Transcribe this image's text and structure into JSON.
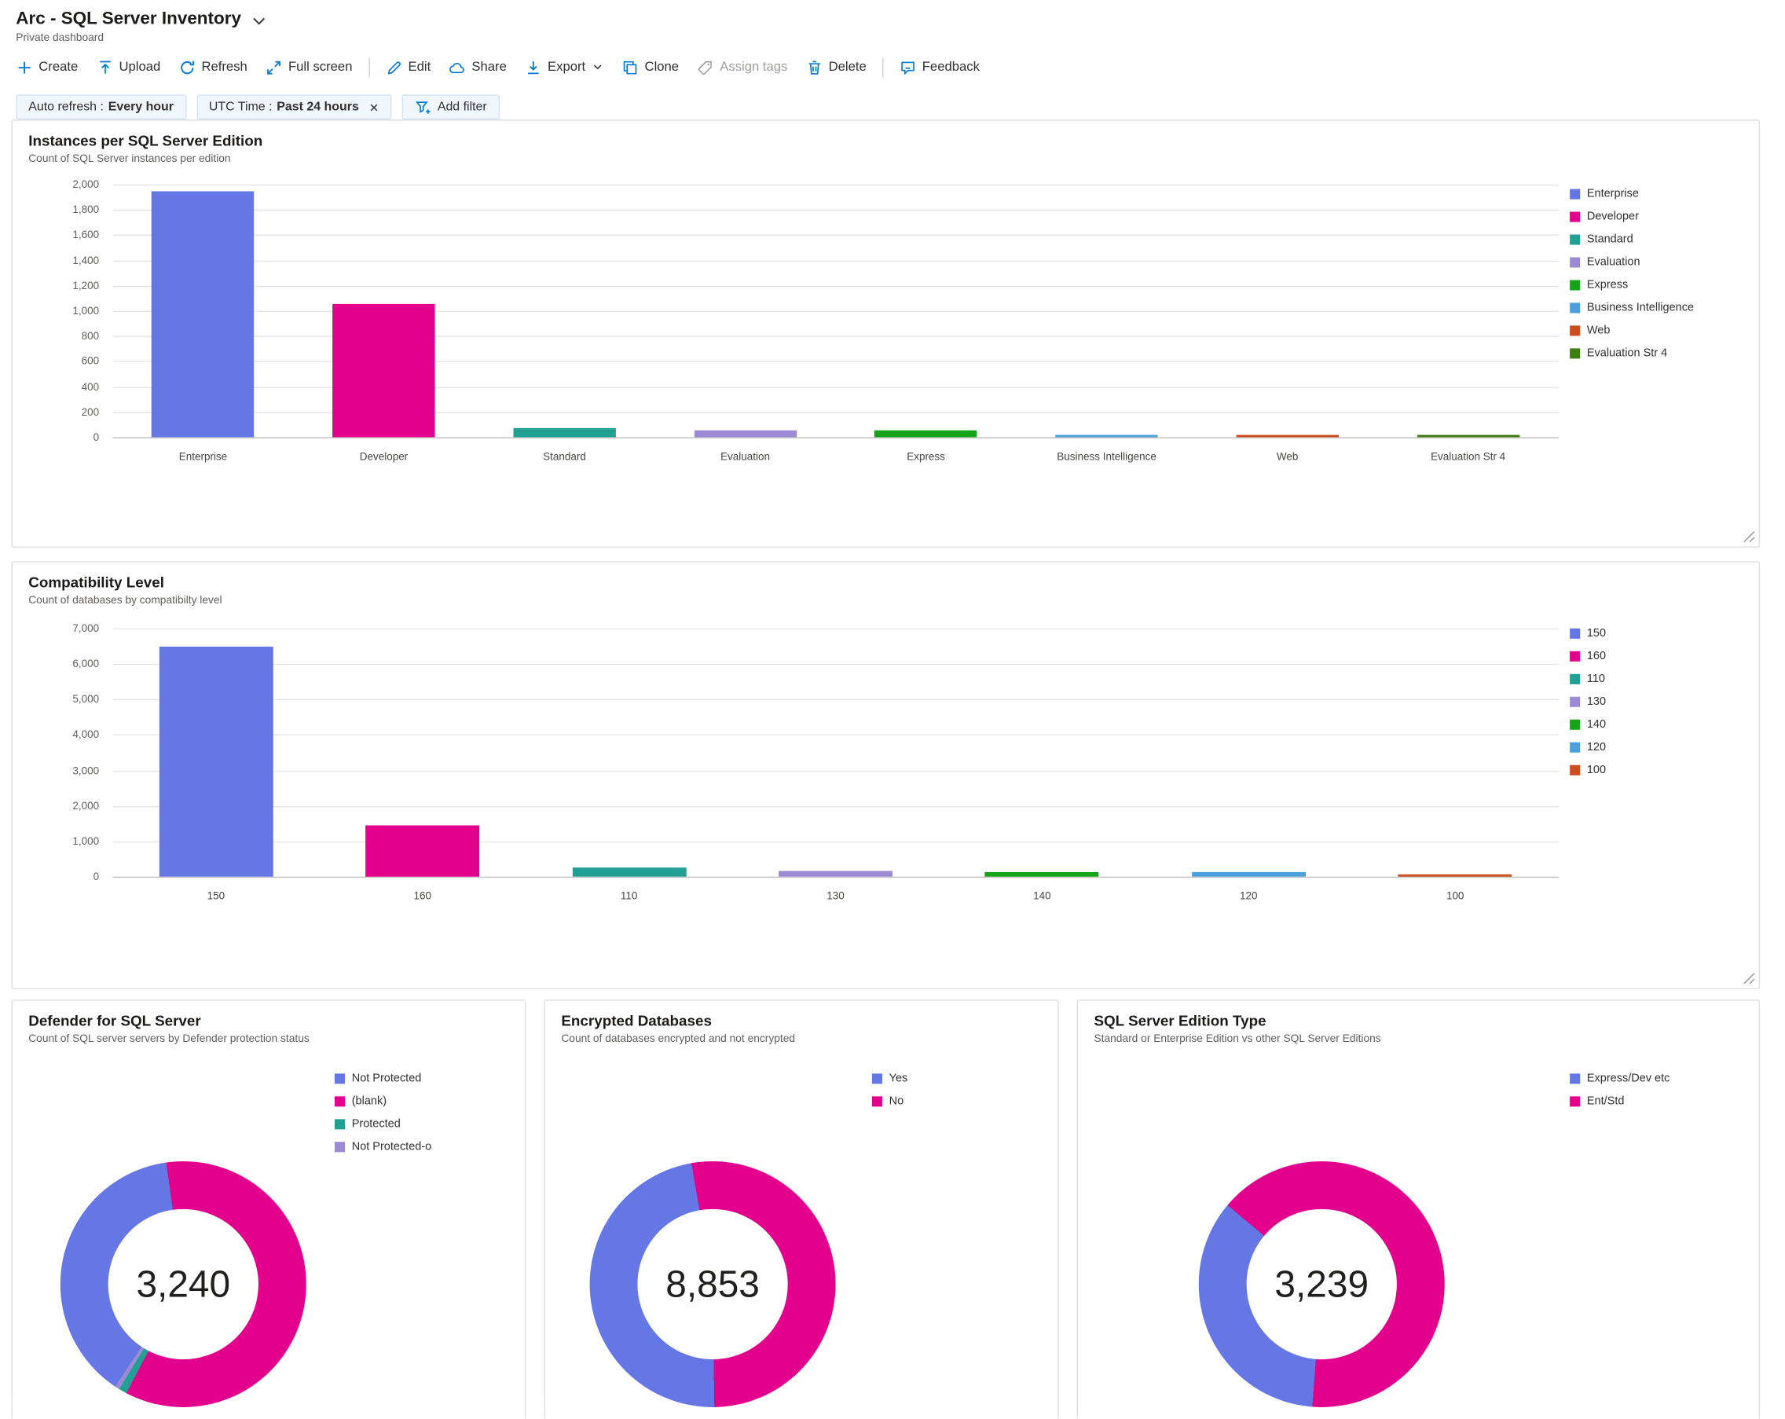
{
  "header": {
    "title": "Arc - SQL Server Inventory",
    "subtitle": "Private dashboard"
  },
  "toolbar": {
    "items": [
      {
        "id": "create",
        "label": "Create",
        "icon": "plus-icon"
      },
      {
        "id": "upload",
        "label": "Upload",
        "icon": "upload-icon"
      },
      {
        "id": "refresh",
        "label": "Refresh",
        "icon": "refresh-icon"
      },
      {
        "id": "fullscreen",
        "label": "Full screen",
        "icon": "fullscreen-icon"
      },
      {
        "id": "edit",
        "label": "Edit",
        "icon": "edit-icon",
        "divider_before": true
      },
      {
        "id": "share",
        "label": "Share",
        "icon": "share-icon"
      },
      {
        "id": "export",
        "label": "Export",
        "icon": "export-icon",
        "caret": true
      },
      {
        "id": "clone",
        "label": "Clone",
        "icon": "clone-icon"
      },
      {
        "id": "assign-tags",
        "label": "Assign tags",
        "icon": "tag-icon",
        "enabled": false
      },
      {
        "id": "delete",
        "label": "Delete",
        "icon": "delete-icon"
      },
      {
        "id": "feedback",
        "label": "Feedback",
        "icon": "feedback-icon",
        "divider_before": true
      }
    ]
  },
  "filters": {
    "pills": [
      {
        "id": "auto-refresh",
        "label": "Auto refresh :",
        "value": "Every hour",
        "dismissible": false
      },
      {
        "id": "utc-time",
        "label": "UTC Time :",
        "value": "Past 24 hours",
        "dismissible": true
      }
    ],
    "add_filter_label": "Add filter"
  },
  "colors": {
    "accent": "#0078d4",
    "palette": [
      "#6477E4",
      "#E3008C",
      "#23A094",
      "#9C8BD4",
      "#15A317",
      "#4A9FDC",
      "#CC4E1E",
      "#3E7D12"
    ]
  },
  "chart_data": [
    {
      "id": "instances-per-sql-server-edition",
      "type": "bar",
      "title": "Instances per SQL Server Edition",
      "subtitle": "Count of SQL Server instances per edition",
      "categories": [
        "Enterprise",
        "Developer",
        "Standard",
        "Evaluation",
        "Express",
        "Business Intelligence",
        "Web",
        "Evaluation Str 4"
      ],
      "values": [
        1950,
        1050,
        75,
        55,
        50,
        15,
        8,
        6
      ],
      "colors": [
        "#6477E4",
        "#E3008C",
        "#23A094",
        "#9C8BD4",
        "#15A317",
        "#4A9FDC",
        "#CC4E1E",
        "#3E7D12"
      ],
      "legend": [
        "Enterprise",
        "Developer",
        "Standard",
        "Evaluation",
        "Express",
        "Business Intelligence",
        "Web",
        "Evaluation Str 4"
      ],
      "legend_position": "right",
      "grid": true,
      "ylim": [
        0,
        2000
      ],
      "ytick_step": 200
    },
    {
      "id": "compatibility-level",
      "type": "bar",
      "title": "Compatibility Level",
      "subtitle": "Count of databases by compatibilty level",
      "categories": [
        "150",
        "160",
        "110",
        "130",
        "140",
        "120",
        "100"
      ],
      "values": [
        6500,
        1450,
        250,
        160,
        130,
        115,
        25
      ],
      "colors": [
        "#6477E4",
        "#E3008C",
        "#23A094",
        "#9C8BD4",
        "#15A317",
        "#4A9FDC",
        "#CC4E1E"
      ],
      "legend": [
        "150",
        "160",
        "110",
        "130",
        "140",
        "120",
        "100"
      ],
      "legend_position": "right",
      "grid": true,
      "ylim": [
        0,
        7000
      ],
      "ytick_step": 1000
    },
    {
      "id": "defender-for-sql-server",
      "type": "donut",
      "title": "Defender for SQL Server",
      "subtitle": "Count of SQL server servers by Defender protection status",
      "center_label": "3,240",
      "total": 3240,
      "segments": [
        {
          "label": "Not Protected",
          "value": 1245,
          "color": "#6477E4"
        },
        {
          "label": "(blank)",
          "value": 1940,
          "color": "#E3008C"
        },
        {
          "label": "Protected",
          "value": 35,
          "color": "#23A094"
        },
        {
          "label": "Not Protected-o",
          "value": 20,
          "color": "#9C8BD4"
        }
      ],
      "start_angle": 352,
      "draw_order": [
        1,
        2,
        3,
        0
      ],
      "legend_position": "top-right"
    },
    {
      "id": "encrypted-databases",
      "type": "donut",
      "title": "Encrypted Databases",
      "subtitle": "Count of databases encrypted and not encrypted",
      "center_label": "8,853",
      "total": 8853,
      "segments": [
        {
          "label": "Yes",
          "value": 4200,
          "color": "#6477E4"
        },
        {
          "label": "No",
          "value": 4653,
          "color": "#E3008C"
        }
      ],
      "start_angle": 350,
      "draw_order": [
        1,
        0
      ],
      "legend_position": "top-right"
    },
    {
      "id": "sql-server-edition-type",
      "type": "donut",
      "title": "SQL Server Edition Type",
      "subtitle": "Standard or Enterprise Edition vs other SQL Server Editions",
      "center_label": "3,239",
      "total": 3239,
      "segments": [
        {
          "label": "Express/Dev etc",
          "value": 1130,
          "color": "#6477E4"
        },
        {
          "label": "Ent/Std",
          "value": 2109,
          "color": "#E3008C"
        }
      ],
      "start_angle": 310,
      "draw_order": [
        1,
        0
      ],
      "legend_position": "top-right"
    }
  ]
}
